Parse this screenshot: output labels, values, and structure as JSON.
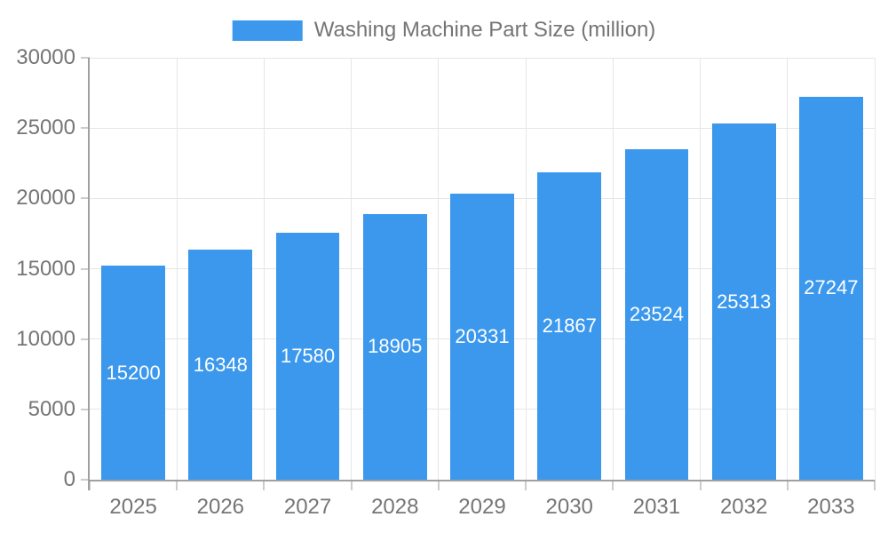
{
  "chart_data": {
    "type": "bar",
    "title": "Washing Machine Part Size (million)",
    "categories": [
      "2025",
      "2026",
      "2027",
      "2028",
      "2029",
      "2030",
      "2031",
      "2032",
      "2033"
    ],
    "series": [
      {
        "name": "Washing Machine Part Size (million)",
        "values": [
          15200,
          16348,
          17580,
          18905,
          20331,
          21867,
          23524,
          25313,
          27247
        ]
      }
    ],
    "xlabel": "",
    "ylabel": "",
    "ylim": [
      0,
      30000
    ],
    "yticks": [
      0,
      5000,
      10000,
      15000,
      20000,
      25000,
      30000
    ],
    "grid": true,
    "legend_position": "top",
    "bar_labels_inside": true,
    "bar_color": "#3B98EC",
    "bar_label_color": "#FFFFFF",
    "axis_text_color": "#757575",
    "gridline_color": "#E6E6E6",
    "axis_line_color": "#A0A0A0"
  }
}
